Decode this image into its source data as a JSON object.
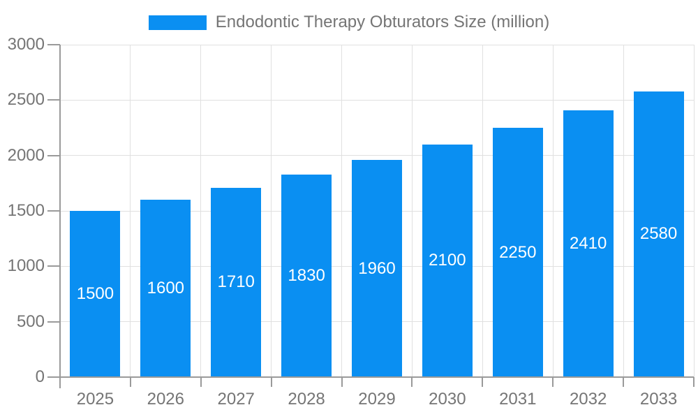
{
  "chart_data": {
    "type": "bar",
    "title": "Endodontic Therapy Obturators Size (million)",
    "series_name": "Endodontic Therapy Obturators Size (million)",
    "categories": [
      "2025",
      "2026",
      "2027",
      "2028",
      "2029",
      "2030",
      "2031",
      "2032",
      "2033"
    ],
    "values": [
      1500,
      1600,
      1710,
      1830,
      1960,
      2100,
      2250,
      2410,
      2580
    ],
    "xlabel": "",
    "ylabel": "",
    "ylim": [
      0,
      3000
    ],
    "yticks": [
      0,
      500,
      1000,
      1500,
      2000,
      2500,
      3000
    ],
    "grid": true,
    "legend_position": "top-center",
    "bar_value_labels": "inside-center",
    "colors": {
      "bar": "#0a8ff2",
      "grid": "#e0e0e0",
      "axis": "#9a9a9a",
      "tick_text": "#757575",
      "bar_label_text": "#ffffff",
      "background": "#ffffff"
    }
  }
}
